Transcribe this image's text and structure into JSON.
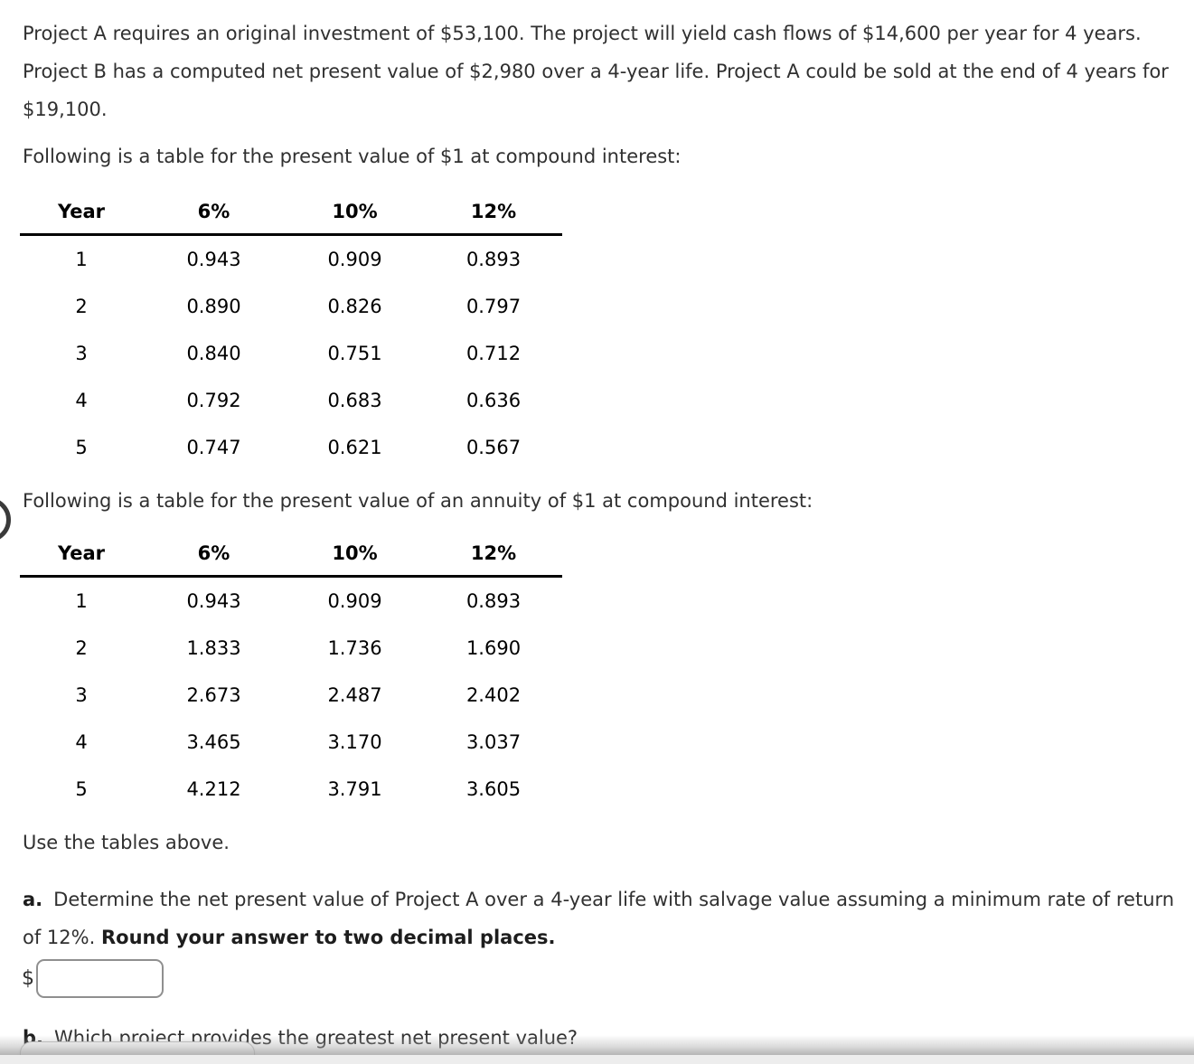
{
  "intro": {
    "paragraph": "Project A requires an original investment of $53,100. The project will yield cash flows of $14,600 per year for 4 years. Project B has a computed net present value of $2,980 over a 4-year life. Project A could be sold at the end of 4 years for $19,100."
  },
  "pv_table": {
    "caption": "Following is a table for the present value of $1 at compound interest:",
    "headers": [
      "Year",
      "6%",
      "10%",
      "12%"
    ],
    "rows": [
      [
        "1",
        "0.943",
        "0.909",
        "0.893"
      ],
      [
        "2",
        "0.890",
        "0.826",
        "0.797"
      ],
      [
        "3",
        "0.840",
        "0.751",
        "0.712"
      ],
      [
        "4",
        "0.792",
        "0.683",
        "0.636"
      ],
      [
        "5",
        "0.747",
        "0.621",
        "0.567"
      ]
    ]
  },
  "annuity_table": {
    "caption": "Following is a table for the present value of an annuity of $1 at compound interest:",
    "headers": [
      "Year",
      "6%",
      "10%",
      "12%"
    ],
    "rows": [
      [
        "1",
        "0.943",
        "0.909",
        "0.893"
      ],
      [
        "2",
        "1.833",
        "1.736",
        "1.690"
      ],
      [
        "3",
        "2.673",
        "2.487",
        "2.402"
      ],
      [
        "4",
        "3.465",
        "3.170",
        "3.037"
      ],
      [
        "5",
        "4.212",
        "3.791",
        "3.605"
      ]
    ]
  },
  "instructions": "Use the tables above.",
  "question_a": {
    "label": "a.",
    "text": "Determine the net present value of Project A over a 4-year life with salvage value assuming a minimum rate of return of 12%.",
    "bold_text": "Round your answer to two decimal places.",
    "currency_symbol": "$",
    "input_value": ""
  },
  "question_b": {
    "label": "b.",
    "text": "Which project provides the greatest net present value?"
  },
  "colors": {
    "body_text": "#303030",
    "table_text": "#000000",
    "table_rule": "#000000",
    "input_border": "#8f8f8f",
    "select_border": "#c2c2c2",
    "circle_icon": "#3a3a3a"
  }
}
